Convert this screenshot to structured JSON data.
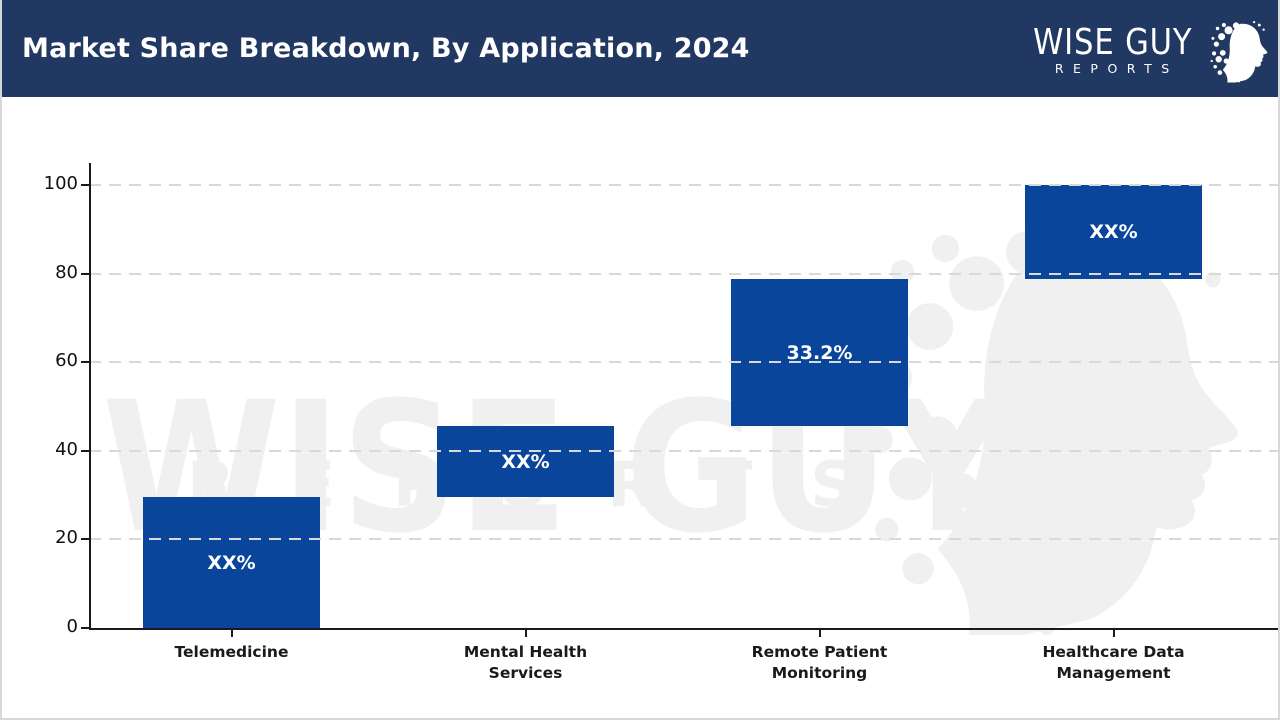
{
  "header": {
    "title": "Market Share Breakdown, By Application, 2024",
    "logo": {
      "wordmark": "WISE GUY",
      "subtext": "REPORTS"
    }
  },
  "watermark": {
    "line1": "WISE GUY",
    "line2": "REPORTS"
  },
  "colors": {
    "header_bg": "#213862",
    "bar": "#0a459c",
    "bar_label": "#ffffff",
    "gridline": "#d9d9d9",
    "axis": "#1a1a1a",
    "watermark": "#f0f0f0",
    "page_border": "#d8d8d8"
  },
  "chart_data": {
    "type": "bar",
    "subtype": "waterfall",
    "title": "Market Share Breakdown, By Application, 2024",
    "categories": [
      "Telemedicine",
      "Mental Health\nServices",
      "Remote Patient\nMonitoring",
      "Healthcare Data\nManagement"
    ],
    "series": [
      {
        "name": "Market share (%)",
        "segments": [
          {
            "category": "Telemedicine",
            "start": 0,
            "end": 29.5,
            "label": "XX%"
          },
          {
            "category": "Mental Health Services",
            "start": 29.5,
            "end": 45.5,
            "label": "XX%"
          },
          {
            "category": "Remote Patient Monitoring",
            "start": 45.5,
            "end": 78.7,
            "label": "33.2%"
          },
          {
            "category": "Healthcare Data Management",
            "start": 78.7,
            "end": 100,
            "label": "XX%"
          }
        ]
      }
    ],
    "ylim": [
      0,
      100
    ],
    "yticks": [
      0,
      20,
      40,
      60,
      80,
      100
    ],
    "xlabel": "",
    "ylabel": "",
    "grid": "horizontal-dashed",
    "legend": "none"
  }
}
